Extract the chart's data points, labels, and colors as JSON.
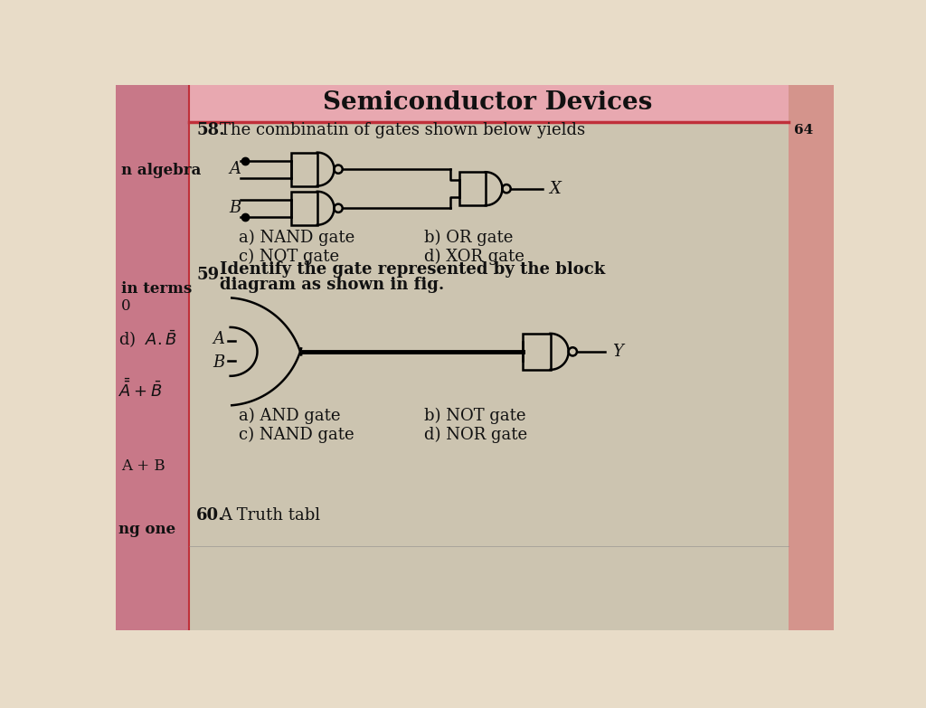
{
  "title": "Semiconductor Devices",
  "title_fontsize": 20,
  "bg_color": "#e8dcc8",
  "main_bg": "#ddd5c0",
  "left_strip_color": "#d4748a",
  "right_strip_color": "#d4a0a8",
  "header_bg": "#e8b0b8",
  "red_line_color": "#c0303a",
  "line_color": "#000000",
  "text_color": "#111111",
  "q58": "58.  The combinatin of gates shown below yields",
  "q59_l1": "59.  Identify the gate represented by the block",
  "q59_l2": "       diagram as shown in fig.",
  "q60": "60.  A Truth tabl",
  "left_labels": [
    "n algebra",
    "in terms",
    "0",
    "A + B",
    "ng one"
  ],
  "ans58_a": "a) NAND gate",
  "ans58_b": "b) OR gate",
  "ans58_c": "c) NOT gate",
  "ans58_d": "d) XOR gate",
  "ans59_a": "a) AND gate",
  "ans59_b": "b) NOT gate",
  "ans59_c": "c) NAND gate",
  "ans59_d": "d) NOR gate"
}
